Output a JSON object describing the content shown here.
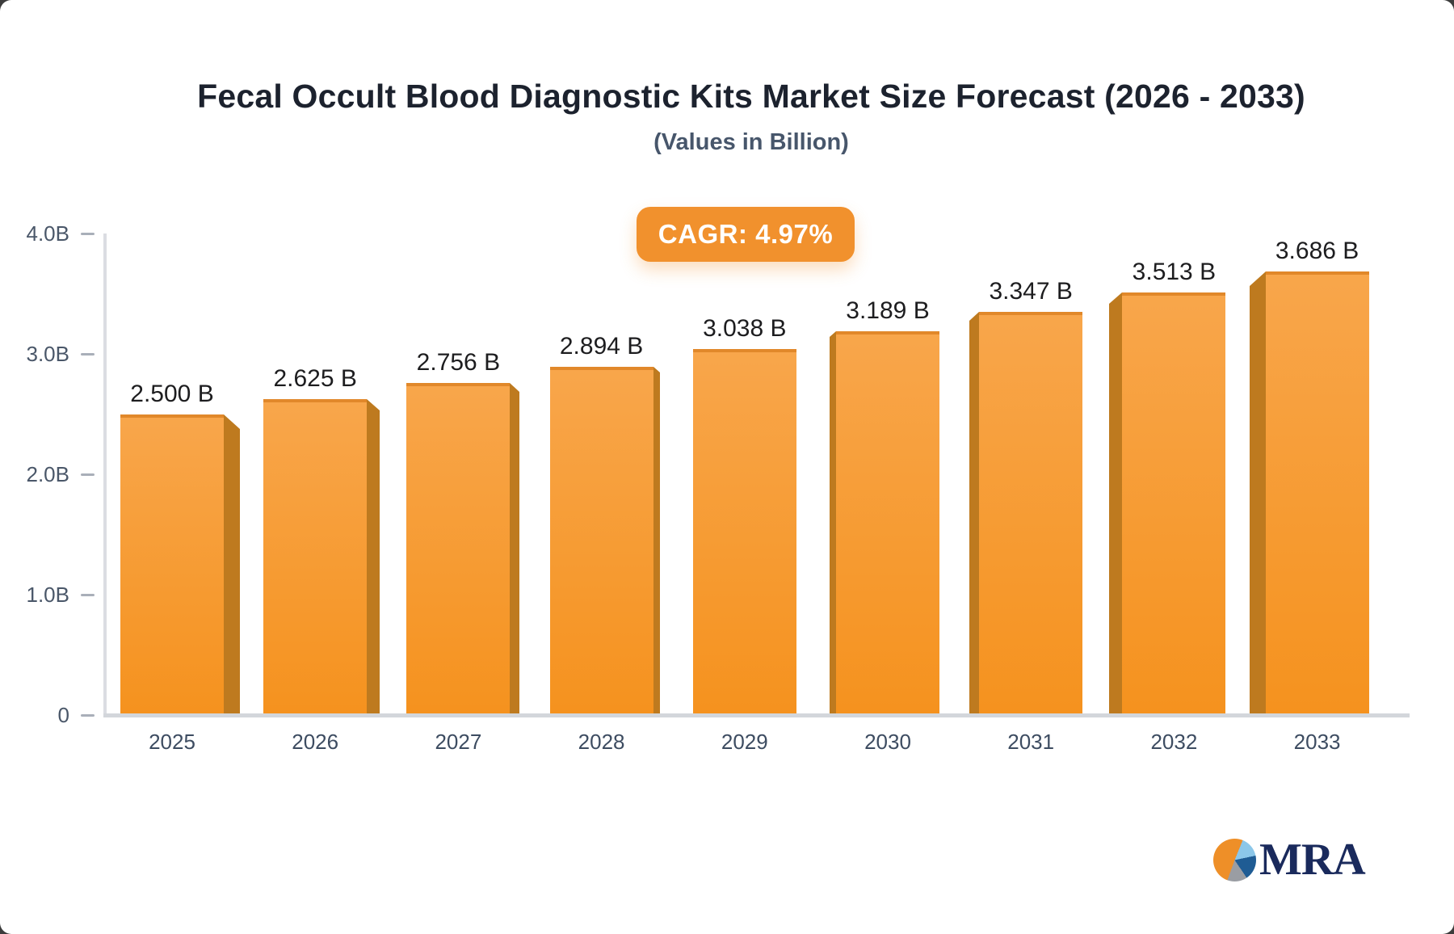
{
  "header": {
    "title": "Fecal Occult Blood Diagnostic Kits Market Size Forecast (2026 - 2033)",
    "subtitle": "(Values in Billion)"
  },
  "badge": {
    "label": "CAGR: 4.97%",
    "color": "#F1912D"
  },
  "chart_data": {
    "type": "bar",
    "title": "Fecal Occult Blood Diagnostic Kits Market Size Forecast (2026 - 2033)",
    "subtitle": "(Values in Billion)",
    "annotation": "CAGR: 4.97%",
    "categories": [
      "2025",
      "2026",
      "2027",
      "2028",
      "2029",
      "2030",
      "2031",
      "2032",
      "2033"
    ],
    "values": [
      2.5,
      2.625,
      2.756,
      2.894,
      3.038,
      3.189,
      3.347,
      3.513,
      3.686
    ],
    "value_labels": [
      "2.500 B",
      "2.625 B",
      "2.756 B",
      "2.894 B",
      "3.038 B",
      "3.189 B",
      "3.347 B",
      "3.513 B",
      "3.686 B"
    ],
    "unit": "Billion",
    "ylim": [
      0,
      4
    ],
    "ytick_labels": [
      "4.0B",
      "3.0B",
      "2.0B",
      "1.0B",
      "0"
    ],
    "ytick_values": [
      4,
      3,
      2,
      1,
      0
    ],
    "grid": false,
    "legend": "none",
    "colors": {
      "bar_gradient_top": "#F8A64B",
      "bar_gradient_bottom": "#F5921E",
      "bar_side": "#BE7A1F",
      "bar_top_edge": "#E1882A",
      "badge_orange": "#F1912D"
    }
  },
  "logo": {
    "text": "MRA",
    "pie_colors": {
      "orange": "#EE8F28",
      "light_blue": "#8CC7E9",
      "dark_blue": "#1F5C94",
      "gray": "#9A9DA3"
    }
  }
}
